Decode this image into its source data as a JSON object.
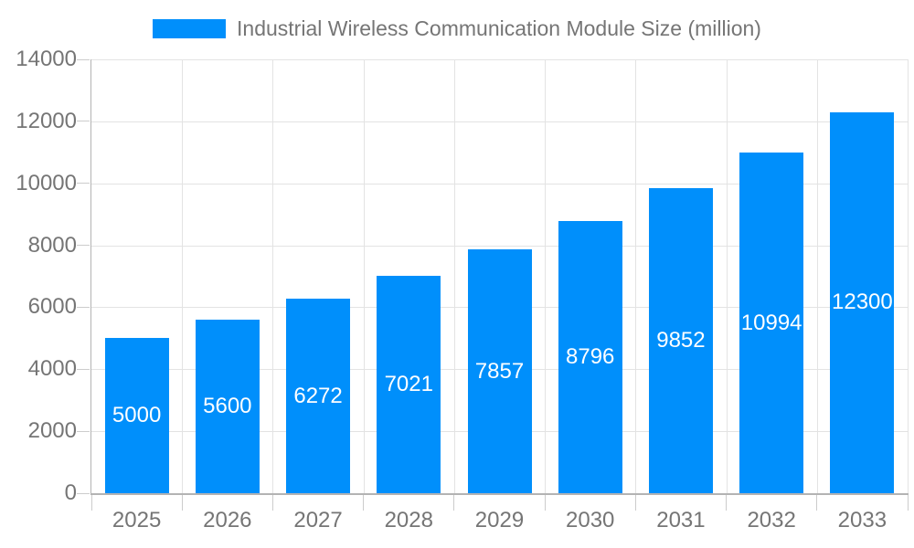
{
  "chart_data": {
    "type": "bar",
    "title": "Industrial Wireless Communication Module Size (million)",
    "categories": [
      "2025",
      "2026",
      "2027",
      "2028",
      "2029",
      "2030",
      "2031",
      "2032",
      "2033"
    ],
    "values": [
      5000,
      5600,
      6272,
      7021,
      7857,
      8796,
      9852,
      10994,
      12300
    ],
    "series": [
      {
        "name": "Industrial Wireless Communication Module Size (million)",
        "values": [
          5000,
          5600,
          6272,
          7021,
          7857,
          8796,
          9852,
          10994,
          12300
        ]
      }
    ],
    "xlabel": "",
    "ylabel": "",
    "ylim": [
      0,
      14000
    ],
    "yticks": [
      0,
      2000,
      4000,
      6000,
      8000,
      10000,
      12000,
      14000
    ],
    "grid": true,
    "legend_position": "top",
    "value_labels": "inside-center",
    "colors": {
      "bar": "#008FFB",
      "value_label_text": "#ffffff",
      "axis_text": "#757575",
      "legend_text": "#757575",
      "gridline": "#e3e3e3",
      "axis_line": "#b3b3b3",
      "tick_mark": "#cccccc",
      "background": "#ffffff"
    }
  },
  "legend": {
    "label": "Industrial Wireless Communication Module Size (million)"
  }
}
